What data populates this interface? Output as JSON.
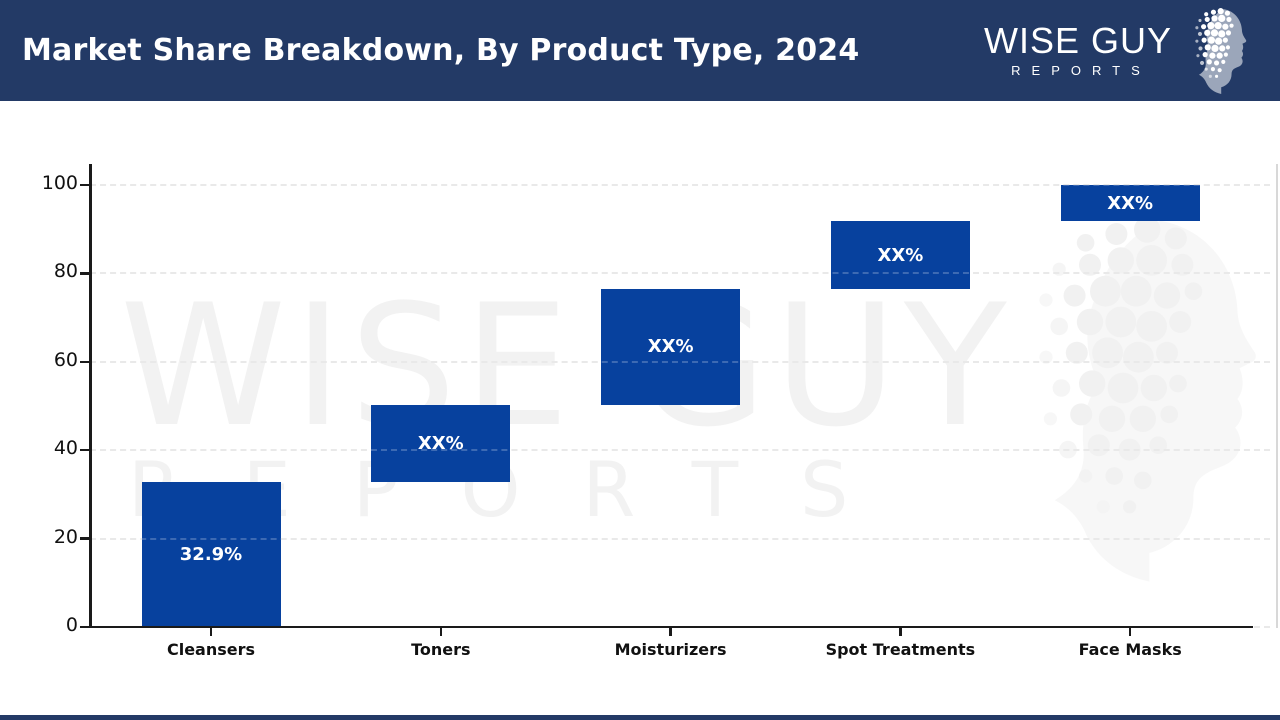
{
  "header": {
    "title": "Market Share Breakdown, By Product Type, 2024",
    "bg_color": "#233a66",
    "logo": {
      "line1": "WISE GUY",
      "line2": "REPORTS"
    }
  },
  "watermark": {
    "line1": "WISE GUY",
    "line2": "REPORTS"
  },
  "footer": {
    "bg_color": "#233a66"
  },
  "chart_data": {
    "type": "bar",
    "subtype": "waterfall",
    "title": "Market Share Breakdown, By Product Type, 2024",
    "categories": [
      "Cleansers",
      "Toners",
      "Moisturizers",
      "Spot Treatments",
      "Face Masks"
    ],
    "bars": [
      {
        "category": "Cleansers",
        "start": 0,
        "end": 32.9,
        "label": "32.9%"
      },
      {
        "category": "Toners",
        "start": 32.9,
        "end": 50.3,
        "label": "XX%"
      },
      {
        "category": "Moisturizers",
        "start": 50.3,
        "end": 76.5,
        "label": "XX%"
      },
      {
        "category": "Spot Treatments",
        "start": 76.5,
        "end": 91.8,
        "label": "XX%"
      },
      {
        "category": "Face Masks",
        "start": 91.8,
        "end": 100.0,
        "label": "XX%"
      }
    ],
    "xlabel": "",
    "ylabel": "",
    "ylim": [
      0,
      105
    ],
    "yticks": [
      0,
      20,
      40,
      60,
      80,
      100
    ],
    "grid": "horizontal-dashed",
    "legend": "none",
    "bar_color": "#07419e",
    "bar_label_color": "#ffffff"
  }
}
